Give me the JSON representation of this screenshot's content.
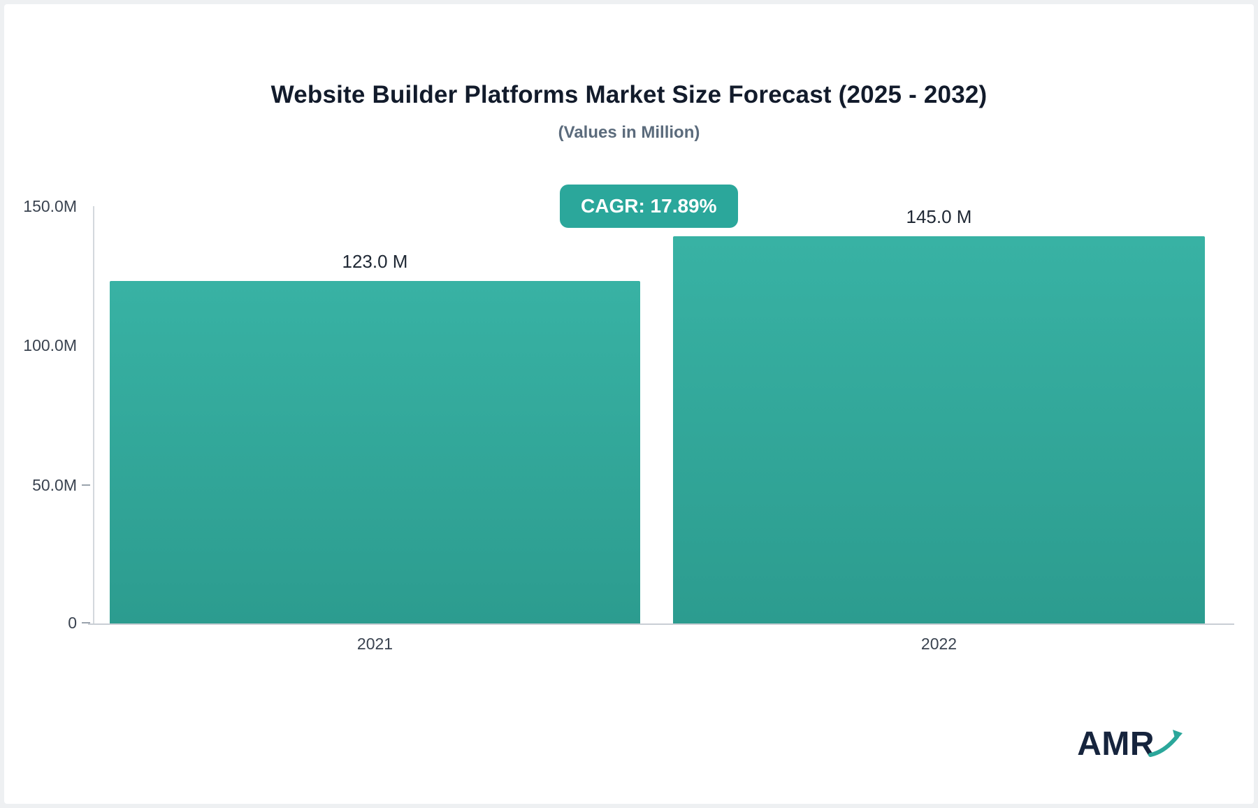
{
  "chart_data": {
    "type": "bar",
    "title": "Website Builder Platforms Market Size Forecast (2025 - 2032)",
    "subtitle": "(Values in Million)",
    "categories": [
      "2021",
      "2022"
    ],
    "values": [
      123.0,
      145.0
    ],
    "value_labels": [
      "123.0 M",
      "145.0 M"
    ],
    "ylim": [
      0,
      150
    ],
    "yticks": [
      150,
      100,
      50,
      0
    ],
    "ytick_labels": [
      "150.0M",
      "100.0M",
      "50.0M",
      "0"
    ],
    "xlabel": "",
    "ylabel": "",
    "grid": false,
    "legend": "none",
    "units": "Million",
    "bar_gradient_top": "#38B2A4",
    "bar_gradient_bottom": "#2C9C8F",
    "accent_color": "#2BA79B"
  },
  "badge": {
    "label": "CAGR: 17.89%"
  },
  "branding": {
    "logo_text": "AMR",
    "logo_color": "#16243D",
    "arrow_color": "#2BA79B",
    "icon": "growth-arrow-icon"
  }
}
